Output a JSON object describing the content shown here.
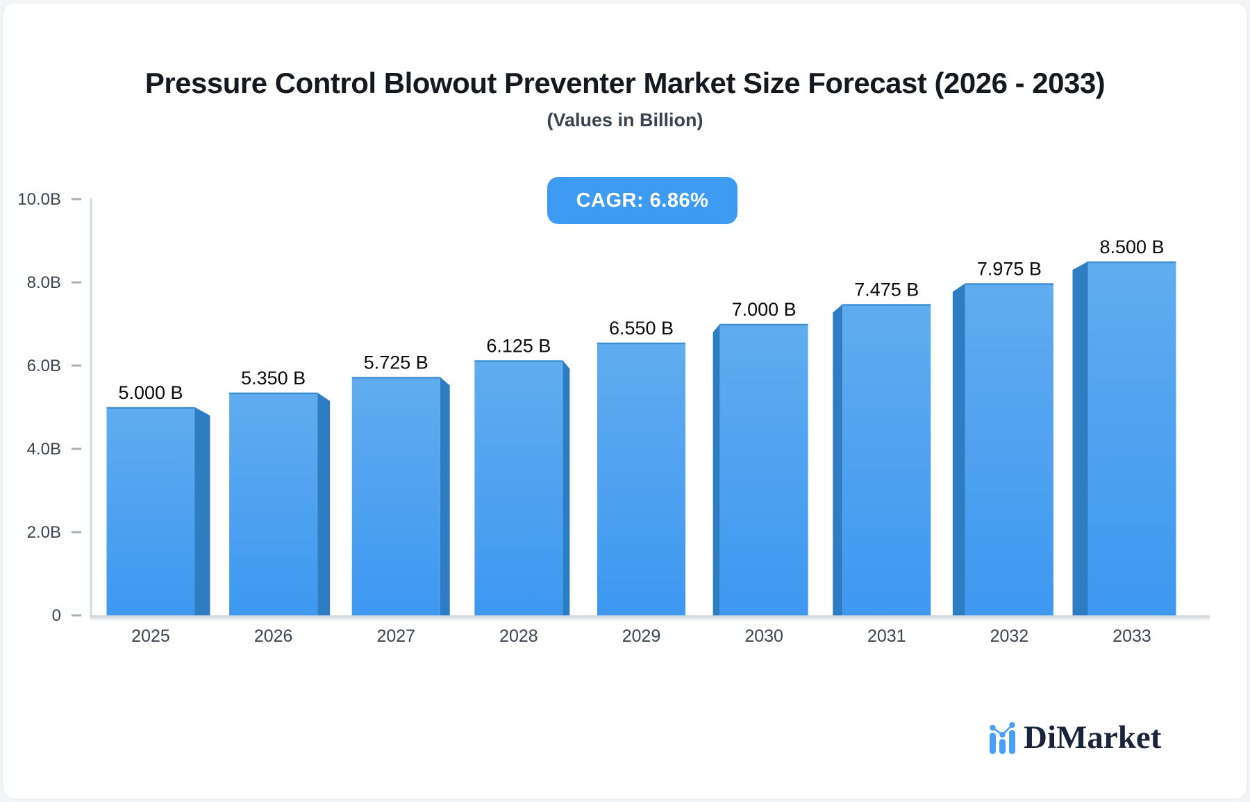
{
  "page": {
    "background": "#f2f4f6",
    "card_background": "#ffffff"
  },
  "header": {
    "title": "Pressure Control Blowout Preventer Market Size Forecast (2026 - 2033)",
    "subtitle": "(Values in Billion)"
  },
  "badge": {
    "label": "CAGR: 6.86%",
    "background": "#3d9cf2",
    "text_color": "#ffffff"
  },
  "chart_data": {
    "type": "bar",
    "title": "Pressure Control Blowout Preventer Market Size Forecast (2026 - 2033)",
    "subtitle": "(Values in Billion)",
    "cagr_percent": 6.86,
    "categories": [
      "2025",
      "2026",
      "2027",
      "2028",
      "2029",
      "2030",
      "2031",
      "2032",
      "2033"
    ],
    "values": [
      5.0,
      5.35,
      5.725,
      6.125,
      6.55,
      7.0,
      7.475,
      7.975,
      8.5
    ],
    "bar_labels": [
      "5.000 B",
      "5.350 B",
      "5.725 B",
      "6.125 B",
      "6.550 B",
      "7.000 B",
      "7.475 B",
      "7.975 B",
      "8.500 B"
    ],
    "unit": "Billion",
    "xlabel": "",
    "ylabel": "",
    "ylim": [
      0,
      10
    ],
    "yticks": [
      {
        "value": 10,
        "label": "10.0B"
      },
      {
        "value": 8,
        "label": "8.0B"
      },
      {
        "value": 6,
        "label": "6.0B"
      },
      {
        "value": 4,
        "label": "4.0B"
      },
      {
        "value": 2,
        "label": "2.0B"
      },
      {
        "value": 0,
        "label": "0"
      }
    ],
    "grid": false,
    "legend": "none",
    "style": "3d-perspective-bars",
    "bar_color_top": "#60ACEF",
    "bar_color_bottom": "#3E98F0",
    "bar_top_edge_color": "#3E8FD6",
    "bar_side_color": "#2E7DC2",
    "axis_line_color": "#d4d8dc",
    "tick_dash_color": "#a8aeb6",
    "axis_label_color": "#3a4350",
    "value_label_color": "#0a0a0a"
  },
  "footer": {
    "brand": "DiMarket",
    "brand_color": "#18233c",
    "logo_icon": "mini-bar-line-chart-icon",
    "logo_blue": "#4aa0f5"
  }
}
